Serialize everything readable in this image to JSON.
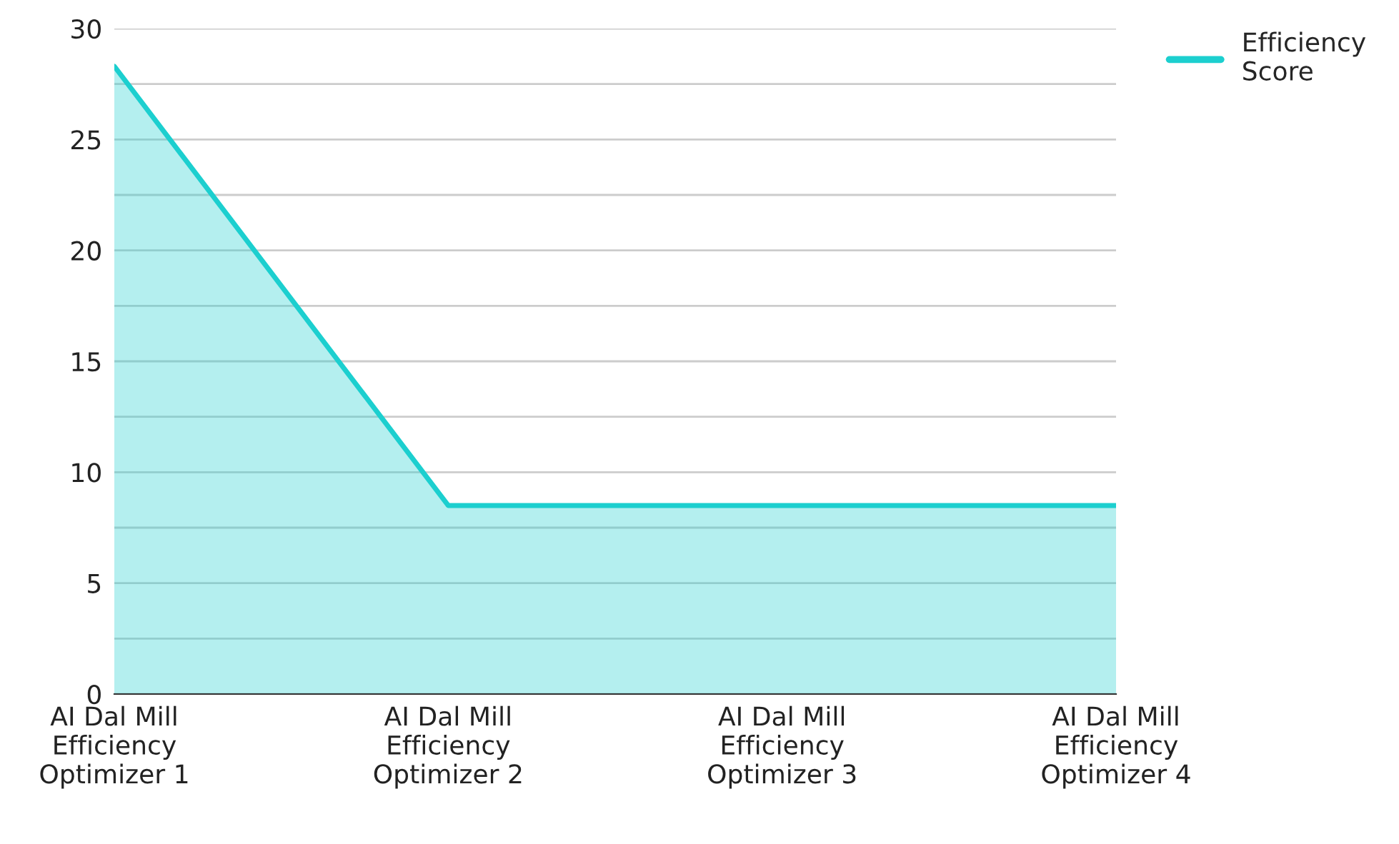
{
  "chart_data": {
    "type": "area",
    "categories": [
      "AI Dal Mill\nEfficiency\nOptimizer 1",
      "AI Dal Mill\nEfficiency\nOptimizer 2",
      "AI Dal Mill\nEfficiency\nOptimizer 3",
      "AI Dal Mill\nEfficiency\nOptimizer 4"
    ],
    "series": [
      {
        "name": "Efficiency\nScore",
        "color": "#1ccfcf",
        "values": [
          28.3,
          8.5,
          8.5,
          8.5
        ]
      }
    ],
    "ylim": [
      0,
      30
    ],
    "yticks": [
      0,
      {
        "value": 2.5,
        "label": null
      },
      5,
      {
        "value": 7.5,
        "label": null
      },
      10,
      {
        "value": 12.5,
        "label": null
      },
      15,
      {
        "value": 17.5,
        "label": null
      },
      20,
      {
        "value": 22.5,
        "label": null
      },
      25,
      {
        "value": 27.5,
        "label": null
      },
      30
    ],
    "grid": "y",
    "legend": "top right"
  }
}
